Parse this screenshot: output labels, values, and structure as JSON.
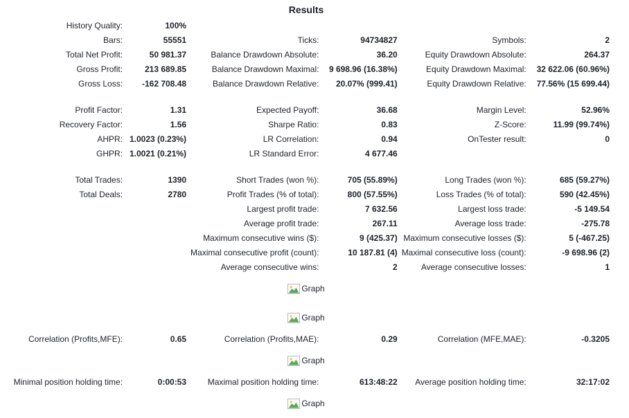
{
  "page": {
    "title": "Results"
  },
  "colors": {
    "text": "#1d2129",
    "background": "#ffffff"
  },
  "graph": {
    "alt": "Graph"
  },
  "blocks": [
    {
      "type": "rows",
      "rows": [
        [
          {
            "label": "History Quality:",
            "value": "100%"
          },
          null,
          null
        ],
        [
          {
            "label": "Bars:",
            "value": "55551"
          },
          {
            "label": "Ticks:",
            "value": "94734827"
          },
          {
            "label": "Symbols:",
            "value": "2"
          }
        ],
        [
          {
            "label": "Total Net Profit:",
            "value": "50 981.37"
          },
          {
            "label": "Balance Drawdown Absolute:",
            "value": "36.20"
          },
          {
            "label": "Equity Drawdown Absolute:",
            "value": "264.37"
          }
        ],
        [
          {
            "label": "Gross Profit:",
            "value": "213 689.85"
          },
          {
            "label": "Balance Drawdown Maximal:",
            "value": "9 698.96 (16.38%)"
          },
          {
            "label": "Equity Drawdown Maximal:",
            "value": "32 622.06 (60.96%)"
          }
        ],
        [
          {
            "label": "Gross Loss:",
            "value": "-162 708.48"
          },
          {
            "label": "Balance Drawdown Relative:",
            "value": "20.07% (999.41)"
          },
          {
            "label": "Equity Drawdown Relative:",
            "value": "77.56% (15 699.44)"
          }
        ]
      ]
    },
    {
      "type": "spacer"
    },
    {
      "type": "rows",
      "rows": [
        [
          {
            "label": "Profit Factor:",
            "value": "1.31"
          },
          {
            "label": "Expected Payoff:",
            "value": "36.68"
          },
          {
            "label": "Margin Level:",
            "value": "52.96%"
          }
        ],
        [
          {
            "label": "Recovery Factor:",
            "value": "1.56"
          },
          {
            "label": "Sharpe Ratio:",
            "value": "0.83"
          },
          {
            "label": "Z-Score:",
            "value": "11.99 (99.74%)"
          }
        ],
        [
          {
            "label": "AHPR:",
            "value": "1.0023 (0.23%)"
          },
          {
            "label": "LR Correlation:",
            "value": "0.94"
          },
          {
            "label": "OnTester result:",
            "value": "0"
          }
        ],
        [
          {
            "label": "GHPR:",
            "value": "1.0021 (0.21%)"
          },
          {
            "label": "LR Standard Error:",
            "value": "4 677.46"
          },
          null
        ]
      ]
    },
    {
      "type": "spacer"
    },
    {
      "type": "rows",
      "rows": [
        [
          {
            "label": "Total Trades:",
            "value": "1390"
          },
          {
            "label": "Short Trades (won %):",
            "value": "705 (55.89%)"
          },
          {
            "label": "Long Trades (won %):",
            "value": "685 (59.27%)"
          }
        ],
        [
          {
            "label": "Total Deals:",
            "value": "2780"
          },
          {
            "label": "Profit Trades (% of total):",
            "value": "800 (57.55%)"
          },
          {
            "label": "Loss Trades (% of total):",
            "value": "590 (42.45%)"
          }
        ],
        [
          null,
          {
            "label": "Largest profit trade:",
            "value": "7 632.56"
          },
          {
            "label": "Largest loss trade:",
            "value": "-5 149.54"
          }
        ],
        [
          null,
          {
            "label": "Average profit trade:",
            "value": "267.11"
          },
          {
            "label": "Average loss trade:",
            "value": "-275.78"
          }
        ],
        [
          null,
          {
            "label": "Maximum consecutive wins ($):",
            "value": "9 (425.37)"
          },
          {
            "label": "Maximum consecutive losses ($):",
            "value": "5 (-467.25)"
          }
        ],
        [
          null,
          {
            "label": "Maximal consecutive profit (count):",
            "value": "10 187.81 (4)"
          },
          {
            "label": "Maximal consecutive loss (count):",
            "value": "-9 698.96 (2)"
          }
        ],
        [
          null,
          {
            "label": "Average consecutive wins:",
            "value": "2"
          },
          {
            "label": "Average consecutive losses:",
            "value": "1"
          }
        ]
      ]
    },
    {
      "type": "graph"
    },
    {
      "type": "graph"
    },
    {
      "type": "rows",
      "rows": [
        [
          {
            "label": "Correlation (Profits,MFE):",
            "value": "0.65"
          },
          {
            "label": "Correlation (Profits,MAE):",
            "value": "0.29"
          },
          {
            "label": "Correlation (MFE,MAE):",
            "value": "-0.3205"
          }
        ]
      ]
    },
    {
      "type": "graph"
    },
    {
      "type": "rows",
      "rows": [
        [
          {
            "label": "Minimal position holding time:",
            "value": "0:00:53"
          },
          {
            "label": "Maximal position holding time:",
            "value": "613:48:22"
          },
          {
            "label": "Average position holding time:",
            "value": "32:17:02"
          }
        ]
      ]
    },
    {
      "type": "graph"
    }
  ]
}
